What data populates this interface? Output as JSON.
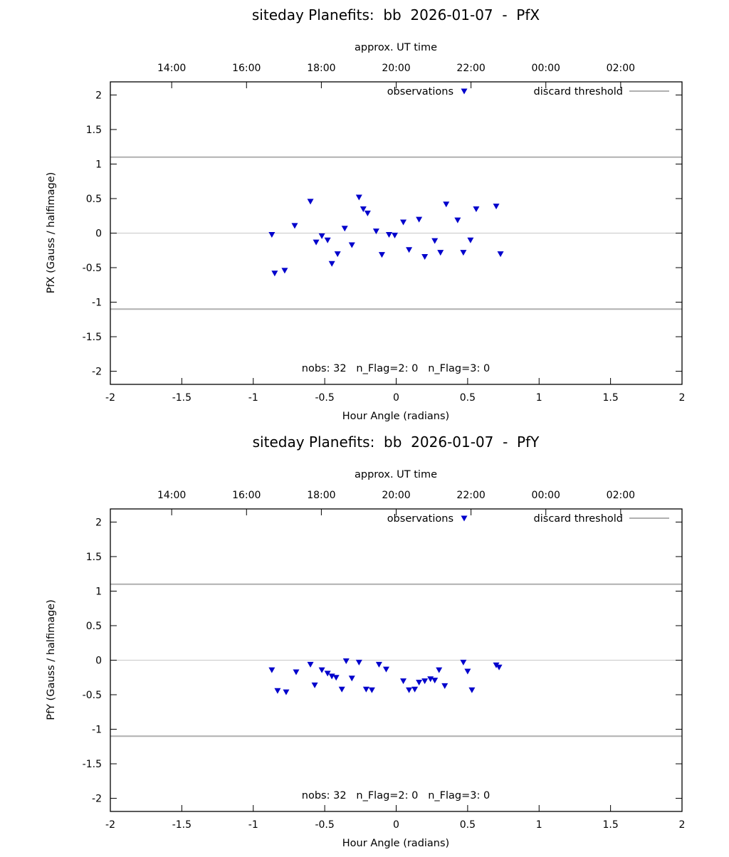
{
  "page": {
    "background": "#ffffff"
  },
  "chart_data": [
    {
      "type": "scatter",
      "title": "siteday Planefits:  bb  2026-01-07  -  PfX",
      "xlabel": "Hour Angle (radians)",
      "ylabel": "PfX (Gauss / halfimage)",
      "annotation": "nobs: 32   n_Flag=2: 0   n_Flag=3: 0",
      "top_axis": {
        "label": "approx. UT time",
        "tick_labels": [
          "14:00",
          "16:00",
          "18:00",
          "20:00",
          "22:00",
          "00:00",
          "02:00"
        ],
        "tick_positions": [
          -1.5708,
          -1.0472,
          -0.5236,
          0,
          0.5236,
          1.0472,
          1.5708
        ]
      },
      "legend": [
        {
          "label": "observations",
          "marker": "triangle-down-icon",
          "color": "#0000cc"
        },
        {
          "label": "discard threshold",
          "marker": "line",
          "color": "#b0b0b0"
        }
      ],
      "xlim": [
        -2,
        2
      ],
      "ylim": [
        -2.19,
        2.19
      ],
      "xticks": [
        -2,
        -1.5,
        -1,
        -0.5,
        0,
        0.5,
        1,
        1.5,
        2
      ],
      "yticks": [
        -2,
        -1.5,
        -1,
        -0.5,
        0,
        0.5,
        1,
        1.5,
        2
      ],
      "thresholds": [
        1.1,
        -1.1
      ],
      "marker_color": "#0000cc",
      "threshold_color": "#b0b0b0",
      "zero_line_color": "#c8c8c8",
      "frame_color": "#000000",
      "grid": false,
      "legend_position": "top-right-inside",
      "points": [
        [
          -0.87,
          -0.02
        ],
        [
          -0.85,
          -0.58
        ],
        [
          -0.78,
          -0.54
        ],
        [
          -0.71,
          0.11
        ],
        [
          -0.6,
          0.46
        ],
        [
          -0.56,
          -0.13
        ],
        [
          -0.52,
          -0.04
        ],
        [
          -0.48,
          -0.1
        ],
        [
          -0.45,
          -0.44
        ],
        [
          -0.41,
          -0.3
        ],
        [
          -0.36,
          0.07
        ],
        [
          -0.31,
          -0.17
        ],
        [
          -0.26,
          0.52
        ],
        [
          -0.23,
          0.35
        ],
        [
          -0.2,
          0.29
        ],
        [
          -0.14,
          0.03
        ],
        [
          -0.1,
          -0.31
        ],
        [
          -0.05,
          -0.02
        ],
        [
          -0.01,
          -0.03
        ],
        [
          0.05,
          0.16
        ],
        [
          0.09,
          -0.24
        ],
        [
          0.16,
          0.2
        ],
        [
          0.2,
          -0.34
        ],
        [
          0.27,
          -0.11
        ],
        [
          0.31,
          -0.28
        ],
        [
          0.35,
          0.42
        ],
        [
          0.43,
          0.19
        ],
        [
          0.47,
          -0.28
        ],
        [
          0.52,
          -0.1
        ],
        [
          0.56,
          0.35
        ],
        [
          0.7,
          0.39
        ],
        [
          0.73,
          -0.3
        ]
      ]
    },
    {
      "type": "scatter",
      "title": "siteday Planefits:  bb  2026-01-07  -  PfY",
      "xlabel": "Hour Angle (radians)",
      "ylabel": "PfY (Gauss / halfimage)",
      "annotation": "nobs: 32   n_Flag=2: 0   n_Flag=3: 0",
      "top_axis": {
        "label": "approx. UT time",
        "tick_labels": [
          "14:00",
          "16:00",
          "18:00",
          "20:00",
          "22:00",
          "00:00",
          "02:00"
        ],
        "tick_positions": [
          -1.5708,
          -1.0472,
          -0.5236,
          0,
          0.5236,
          1.0472,
          1.5708
        ]
      },
      "legend": [
        {
          "label": "observations",
          "marker": "triangle-down-icon",
          "color": "#0000cc"
        },
        {
          "label": "discard threshold",
          "marker": "line",
          "color": "#b0b0b0"
        }
      ],
      "xlim": [
        -2,
        2
      ],
      "ylim": [
        -2.19,
        2.19
      ],
      "xticks": [
        -2,
        -1.5,
        -1,
        -0.5,
        0,
        0.5,
        1,
        1.5,
        2
      ],
      "yticks": [
        -2,
        -1.5,
        -1,
        -0.5,
        0,
        0.5,
        1,
        1.5,
        2
      ],
      "thresholds": [
        1.1,
        -1.1
      ],
      "marker_color": "#0000cc",
      "threshold_color": "#b0b0b0",
      "zero_line_color": "#c8c8c8",
      "frame_color": "#000000",
      "grid": false,
      "legend_position": "top-right-inside",
      "points": [
        [
          -0.87,
          -0.14
        ],
        [
          -0.83,
          -0.44
        ],
        [
          -0.77,
          -0.46
        ],
        [
          -0.7,
          -0.17
        ],
        [
          -0.6,
          -0.06
        ],
        [
          -0.57,
          -0.36
        ],
        [
          -0.52,
          -0.14
        ],
        [
          -0.48,
          -0.19
        ],
        [
          -0.45,
          -0.23
        ],
        [
          -0.42,
          -0.25
        ],
        [
          -0.38,
          -0.42
        ],
        [
          -0.35,
          -0.01
        ],
        [
          -0.31,
          -0.26
        ],
        [
          -0.26,
          -0.03
        ],
        [
          -0.21,
          -0.42
        ],
        [
          -0.17,
          -0.43
        ],
        [
          -0.12,
          -0.06
        ],
        [
          -0.07,
          -0.13
        ],
        [
          0.05,
          -0.3
        ],
        [
          0.09,
          -0.43
        ],
        [
          0.13,
          -0.42
        ],
        [
          0.16,
          -0.32
        ],
        [
          0.2,
          -0.3
        ],
        [
          0.24,
          -0.27
        ],
        [
          0.27,
          -0.29
        ],
        [
          0.3,
          -0.14
        ],
        [
          0.34,
          -0.37
        ],
        [
          0.47,
          -0.03
        ],
        [
          0.5,
          -0.16
        ],
        [
          0.53,
          -0.43
        ],
        [
          0.7,
          -0.07
        ],
        [
          0.72,
          -0.1
        ]
      ]
    }
  ]
}
